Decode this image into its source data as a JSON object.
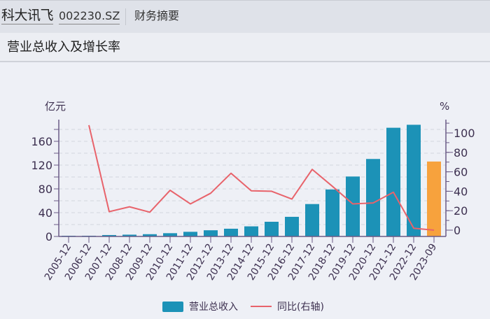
{
  "header": {
    "company_name": "科大讯飞",
    "stock_code": "002230.SZ",
    "tab_label": "财务摘要"
  },
  "section": {
    "title": "营业总收入及增长率"
  },
  "colors": {
    "bar": "#1c92b7",
    "bar_latest": "#f7a23d",
    "line": "#e8636b",
    "axis": "#6a5a86"
  },
  "chart_data": {
    "type": "bar+line",
    "title": "营业总收入及增长率",
    "categories": [
      "2005-12",
      "2006-12",
      "2007-12",
      "2008-12",
      "2009-12",
      "2010-12",
      "2011-12",
      "2012-12",
      "2013-12",
      "2014-12",
      "2015-12",
      "2016-12",
      "2017-12",
      "2018-12",
      "2019-12",
      "2020-12",
      "2021-12",
      "2022-12",
      "2023-09"
    ],
    "series": [
      {
        "name": "营业总收入",
        "axis": "left",
        "type": "bar",
        "values": [
          0.5,
          1.2,
          2.4,
          3.0,
          3.8,
          5.5,
          7.8,
          10.4,
          13.0,
          17.0,
          24.7,
          33.0,
          54.5,
          79.0,
          100.8,
          130.3,
          182.8,
          187.8,
          126.0
        ]
      },
      {
        "name": "同比(右轴)",
        "axis": "right",
        "type": "line",
        "values": [
          null,
          108,
          19,
          24,
          18.5,
          41,
          27,
          38,
          58.5,
          40.5,
          40,
          32,
          62.5,
          45,
          27,
          28,
          39,
          2,
          0
        ]
      }
    ],
    "ylabel_left": "亿元",
    "ylabel_right": "%",
    "yticks_left": [
      0,
      40,
      80,
      120,
      160
    ],
    "ylim_left": [
      0,
      200
    ],
    "yticks_right": [
      0,
      20,
      40,
      60,
      80,
      100
    ],
    "ylim_right": [
      -7,
      113
    ],
    "grid": true,
    "legend_position": "bottom",
    "highlighted_last_bar": true
  }
}
